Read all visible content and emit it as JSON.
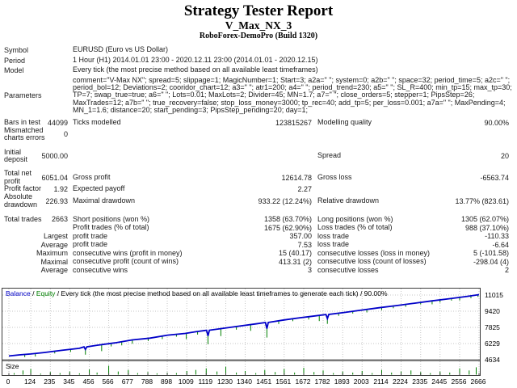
{
  "report": {
    "title": "Strategy Tester Report",
    "subtitle": "V_Max_NX_3",
    "build": "RoboForex-DemoPro (Build 1320)"
  },
  "info_rows": [
    {
      "label": "Symbol",
      "value": "EURUSD (Euro vs US Dollar)"
    },
    {
      "label": "Period",
      "value": "1 Hour (H1) 2014.01.01 23:00 - 2020.12.11 23:00 (2014.01.01 - 2020.12.15)"
    },
    {
      "label": "Model",
      "value": "Every tick (the most precise method based on all available least timeframes)"
    },
    {
      "label": "Parameters",
      "value": "comment=\"V-Max NX\"; spread=5; slippage=1; MagicNumber=1; Start=3; a2a=\" \"; system=0; a2b=\" \"; space=32; period_time=5; a2c=\" \"; period_bol=12; Deviations=2; cooridor_chart=12; a3=\" \"; atr1=200; a4=\" \"; period_trend=230; a5=\" \"; SL_R=400; min_tp=15; max_tp=30; TP=7; swap_true=true; a6=\" \"; Lots=0.01; MaxLots=2; Divider=45; MN=1.7; a7=\" \"; close_orders=5; stepper=1; PipsStep=26; MaxTrades=12; a7b=\" \"; true_recovery=false; stop_loss_money=3000; tp_rec=40; add_tp=5; per_loss=0.001; a7a=\" \"; MaxPending=4; MN_1=1.6; distance=20; start_pending=3; PipsStep_pending=20; day=1;"
    }
  ],
  "stat_rows": [
    {
      "gap": false,
      "cells": [
        "Bars in test",
        "44099",
        "Ticks modelled",
        "123815267",
        "Modelling quality",
        "90.00%"
      ]
    },
    {
      "gap": false,
      "cells": [
        "Mismatched charts errors",
        "0",
        "",
        "",
        "",
        ""
      ]
    },
    {
      "gap": true,
      "cells": [
        "Initial deposit",
        "5000.00",
        "",
        "",
        "Spread",
        "20"
      ]
    },
    {
      "gap": true,
      "cells": [
        "Total net profit",
        "6051.04",
        "Gross profit",
        "12614.78",
        "Gross loss",
        "-6563.74"
      ]
    },
    {
      "gap": false,
      "cells": [
        "Profit factor",
        "1.92",
        "Expected payoff",
        "2.27",
        "",
        ""
      ]
    },
    {
      "gap": false,
      "cells": [
        "Absolute drawdown",
        "226.93",
        "Maximal drawdown",
        "933.22 (12.24%)",
        "Relative drawdown",
        "13.77% (823.61)"
      ]
    },
    {
      "gap": true,
      "cells": [
        "Total trades",
        "2663",
        "Short positions (won %)",
        "1358 (63.70%)",
        "Long positions (won %)",
        "1305 (62.07%)"
      ]
    },
    {
      "gap": false,
      "cells": [
        "",
        "",
        "Profit trades (% of total)",
        "1675 (62.90%)",
        "Loss trades (% of total)",
        "988 (37.10%)"
      ]
    },
    {
      "gap": false,
      "cells": [
        "",
        "Largest",
        "profit trade",
        "357.00",
        "loss trade",
        "-110.33"
      ]
    },
    {
      "gap": false,
      "cells": [
        "",
        "Average",
        "profit trade",
        "7.53",
        "loss trade",
        "-6.64"
      ]
    },
    {
      "gap": false,
      "cells": [
        "",
        "Maximum",
        "consecutive wins (profit in money)",
        "15 (40.17)",
        "consecutive losses (loss in money)",
        "5 (-101.58)"
      ]
    },
    {
      "gap": false,
      "cells": [
        "",
        "Maximal",
        "consecutive profit (count of wins)",
        "413.31 (2)",
        "consecutive loss (count of losses)",
        "-298.04 (4)"
      ]
    },
    {
      "gap": false,
      "cells": [
        "",
        "Average",
        "consecutive wins",
        "3",
        "consecutive losses",
        "2"
      ]
    }
  ],
  "chart_data": {
    "type": "line",
    "legend": {
      "balance_label": "Balance",
      "equity_label": "Equity",
      "sep1": " / ",
      "sep2": " / ",
      "description": "Every tick (the most precise method based on all available least timeframes to generate each tick)",
      "sep3": " / ",
      "quality": "90.00%"
    },
    "size_panel_label": "Size",
    "xlim": [
      0,
      2666
    ],
    "ylim": [
      4634,
      11015
    ],
    "x_ticks": [
      0,
      124,
      235,
      345,
      456,
      566,
      677,
      788,
      898,
      1009,
      1119,
      1230,
      1340,
      1451,
      1561,
      1672,
      1782,
      1893,
      2003,
      2114,
      2224,
      2335,
      2445,
      2556,
      2666
    ],
    "y_ticks": [
      4634,
      6229,
      7825,
      9420,
      11015
    ],
    "colors": {
      "balance": "#0000c8",
      "equity": "#008000",
      "grid": "#c6c6c6",
      "separator": "#7a7a7a",
      "border": "#3c3c3c"
    },
    "balance_points": [
      [
        0,
        5000
      ],
      [
        60,
        5110
      ],
      [
        124,
        5200
      ],
      [
        200,
        5340
      ],
      [
        300,
        5560
      ],
      [
        400,
        5760
      ],
      [
        426,
        5900
      ],
      [
        434,
        5650
      ],
      [
        442,
        5905
      ],
      [
        500,
        6060
      ],
      [
        600,
        6290
      ],
      [
        700,
        6590
      ],
      [
        800,
        6760
      ],
      [
        900,
        7060
      ],
      [
        1000,
        7230
      ],
      [
        1060,
        7390
      ],
      [
        1121,
        7540
      ],
      [
        1129,
        6990
      ],
      [
        1137,
        7545
      ],
      [
        1200,
        7700
      ],
      [
        1300,
        7940
      ],
      [
        1400,
        8170
      ],
      [
        1455,
        8300
      ],
      [
        1463,
        7700
      ],
      [
        1471,
        8310
      ],
      [
        1560,
        8560
      ],
      [
        1650,
        8770
      ],
      [
        1700,
        8880
      ],
      [
        1798,
        9090
      ],
      [
        1806,
        8690
      ],
      [
        1814,
        9100
      ],
      [
        1900,
        9290
      ],
      [
        2000,
        9530
      ],
      [
        2100,
        9760
      ],
      [
        2200,
        9980
      ],
      [
        2300,
        10210
      ],
      [
        2400,
        10440
      ],
      [
        2500,
        10660
      ],
      [
        2600,
        10890
      ],
      [
        2666,
        11051
      ]
    ],
    "equity_spikes": [
      [
        90,
        260
      ],
      [
        150,
        300
      ],
      [
        260,
        220
      ],
      [
        350,
        260
      ],
      [
        434,
        520
      ],
      [
        526,
        640
      ],
      [
        580,
        300
      ],
      [
        640,
        360
      ],
      [
        700,
        380
      ],
      [
        790,
        260
      ],
      [
        870,
        300
      ],
      [
        950,
        240
      ],
      [
        1006,
        580
      ],
      [
        1070,
        300
      ],
      [
        1129,
        820
      ],
      [
        1202,
        740
      ],
      [
        1290,
        320
      ],
      [
        1371,
        620
      ],
      [
        1463,
        880
      ],
      [
        1530,
        320
      ],
      [
        1610,
        240
      ],
      [
        1700,
        280
      ],
      [
        1760,
        560
      ],
      [
        1806,
        520
      ],
      [
        1870,
        260
      ],
      [
        1950,
        220
      ],
      [
        2030,
        300
      ],
      [
        2114,
        260
      ],
      [
        2180,
        220
      ],
      [
        2250,
        240
      ],
      [
        2335,
        200
      ],
      [
        2400,
        340
      ],
      [
        2445,
        260
      ],
      [
        2510,
        220
      ],
      [
        2556,
        300
      ],
      [
        2620,
        240
      ],
      [
        2660,
        200
      ]
    ],
    "size_bars": [
      [
        30,
        0.3
      ],
      [
        80,
        0.8
      ],
      [
        124,
        1.1
      ],
      [
        180,
        0.2
      ],
      [
        235,
        0.5
      ],
      [
        290,
        0.3
      ],
      [
        345,
        0.6
      ],
      [
        400,
        0.25
      ],
      [
        456,
        1.0
      ],
      [
        500,
        0.4
      ],
      [
        566,
        1.7
      ],
      [
        620,
        0.6
      ],
      [
        677,
        0.9
      ],
      [
        730,
        0.3
      ],
      [
        788,
        0.5
      ],
      [
        840,
        0.25
      ],
      [
        898,
        0.4
      ],
      [
        950,
        0.3
      ],
      [
        1009,
        0.7
      ],
      [
        1060,
        0.9
      ],
      [
        1119,
        1.2
      ],
      [
        1180,
        0.6
      ],
      [
        1230,
        1.5
      ],
      [
        1290,
        0.4
      ],
      [
        1340,
        0.7
      ],
      [
        1400,
        0.3
      ],
      [
        1451,
        0.9
      ],
      [
        1510,
        0.5
      ],
      [
        1561,
        1.1
      ],
      [
        1620,
        0.4
      ],
      [
        1672,
        1.3
      ],
      [
        1730,
        0.5
      ],
      [
        1782,
        0.8
      ],
      [
        1840,
        0.3
      ],
      [
        1893,
        0.6
      ],
      [
        1950,
        0.4
      ],
      [
        2003,
        0.7
      ],
      [
        2060,
        0.3
      ],
      [
        2114,
        0.9
      ],
      [
        2170,
        0.4
      ],
      [
        2224,
        0.6
      ],
      [
        2280,
        0.8
      ],
      [
        2335,
        0.5
      ],
      [
        2390,
        0.3
      ],
      [
        2445,
        0.6
      ],
      [
        2500,
        0.4
      ],
      [
        2556,
        1.2
      ],
      [
        2610,
        0.8
      ],
      [
        2650,
        1.4
      ]
    ],
    "max_lots": 2
  }
}
